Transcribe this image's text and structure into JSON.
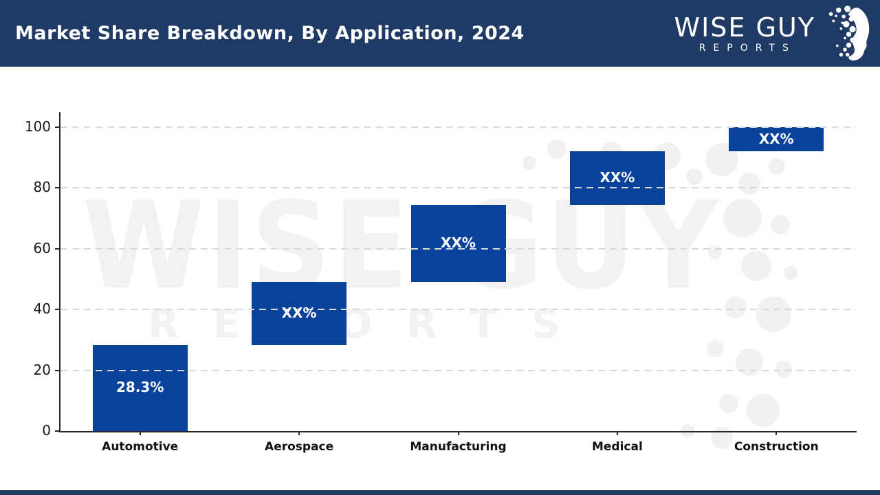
{
  "header": {
    "title": "Market Share Breakdown, By Application, 2024",
    "logo": {
      "line1": "WISE GUY",
      "line2": "REPORTS"
    }
  },
  "watermark": {
    "line1": "WISE GUY",
    "line2": "REPORTS"
  },
  "footer": {
    "visible": true
  },
  "colors": {
    "header_bg": "#203a66",
    "bar": "#09429a",
    "grid": "#d9d9d9",
    "axis": "#262626",
    "bar_label_text": "#ffffff",
    "watermark_text": "#f2f2f2"
  },
  "chart_data": {
    "type": "bar",
    "subtype": "waterfall",
    "title": "Market Share Breakdown, By Application, 2024",
    "categories": [
      "Automotive",
      "Aerospace",
      "Manufacturing",
      "Medical",
      "Construction"
    ],
    "segments": [
      {
        "category": "Automotive",
        "start": 0,
        "end": 28.3,
        "label": "28.3%"
      },
      {
        "category": "Aerospace",
        "start": 28.3,
        "end": 49,
        "label": "XX%"
      },
      {
        "category": "Manufacturing",
        "start": 49,
        "end": 74.5,
        "label": "XX%"
      },
      {
        "category": "Medical",
        "start": 74.5,
        "end": 92,
        "label": "XX%"
      },
      {
        "category": "Construction",
        "start": 92,
        "end": 100,
        "label": "XX%"
      }
    ],
    "yticks": [
      0,
      20,
      40,
      60,
      80,
      100
    ],
    "ylim": [
      0,
      105
    ],
    "xlabel": "",
    "ylabel": "",
    "grid": "dashed horizontal gridlines, drawn over bars",
    "legend": "none"
  }
}
